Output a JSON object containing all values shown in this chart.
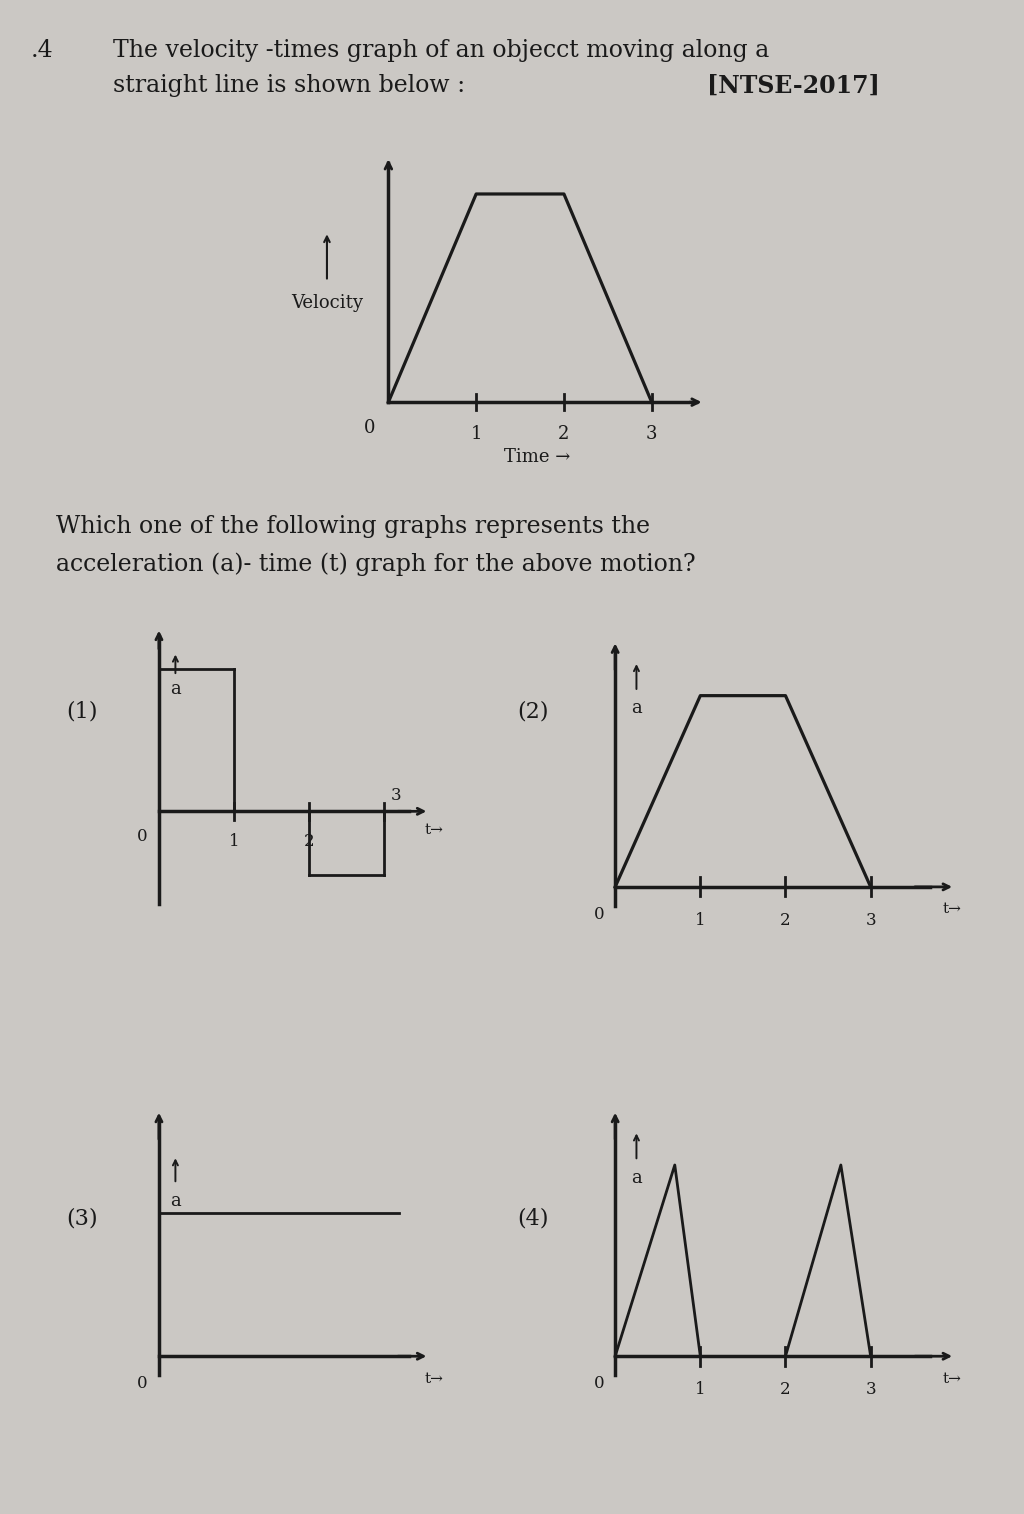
{
  "bg_color": "#cbc8c4",
  "line_color": "#1a1a1a",
  "text_color": "#1a1a1a",
  "page_width": 10.24,
  "page_height": 15.14,
  "title_line1": "The velocity -times graph of an objecct moving along a",
  "title_line2": "straight line is shown below :",
  "title_ref": "[NTSE-2017]",
  "prefix": ".4",
  "q_line1": "Which one of the following graphs represents the",
  "q_line2": "acceleration (a)- time (t) graph for the above motion?",
  "main_vt": {
    "x": [
      0,
      1,
      2,
      3
    ],
    "y": [
      0,
      1,
      1,
      0
    ]
  },
  "opt1_pos": {
    "x": [
      0,
      1
    ],
    "y": [
      1,
      1
    ]
  },
  "opt1_neg": {
    "x": [
      2,
      3
    ],
    "y": [
      -0.5,
      -0.5
    ]
  },
  "opt2_trap": {
    "x": [
      0,
      1,
      2,
      3
    ],
    "y": [
      0,
      1,
      1,
      0
    ]
  },
  "opt4_tri1": {
    "x": [
      0,
      0.7,
      1.0
    ],
    "y": [
      0,
      1,
      0
    ]
  },
  "opt4_tri2": {
    "x": [
      2.0,
      2.6,
      3.0
    ],
    "y": [
      0,
      1,
      0
    ]
  }
}
